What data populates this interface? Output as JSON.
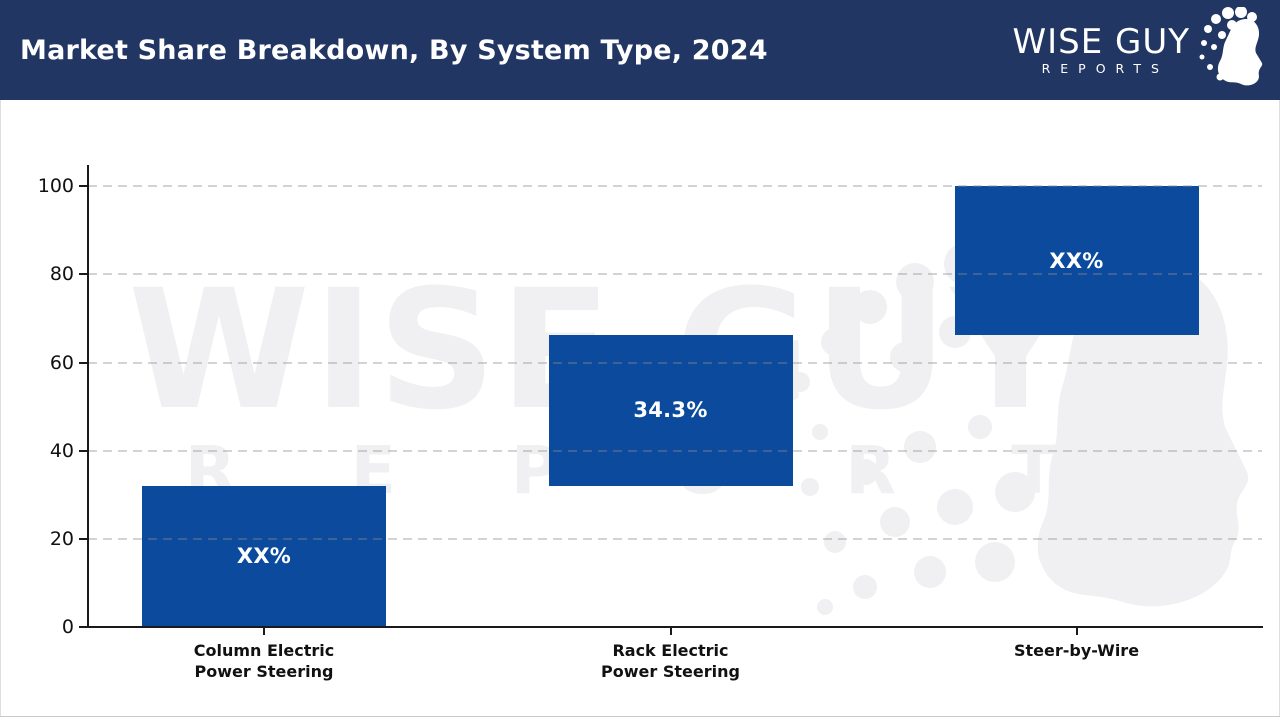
{
  "header": {
    "title": "Market Share Breakdown, By System Type, 2024",
    "logo": {
      "brand": "WISE GUY",
      "sub": "REPORTS"
    }
  },
  "watermark": {
    "brand": "WISE GUY",
    "sub": "R E P O R T S"
  },
  "chart_data": {
    "type": "bar",
    "subtype": "floating-segment-waterfall",
    "title": "Market Share Breakdown, By System Type, 2024",
    "categories": [
      "Column Electric Power Steering",
      "Rack Electric Power Steering",
      "Steer-by-Wire"
    ],
    "category_label_lines": [
      [
        "Column Electric",
        "Power Steering"
      ],
      [
        "Rack Electric",
        "Power Steering"
      ],
      [
        "Steer-by-Wire"
      ]
    ],
    "bars": [
      {
        "category": "Column Electric Power Steering",
        "start": 0,
        "end": 32,
        "label": "XX%"
      },
      {
        "category": "Rack Electric Power Steering",
        "start": 32,
        "end": 66.3,
        "label": "34.3%"
      },
      {
        "category": "Steer-by-Wire",
        "start": 66.3,
        "end": 100,
        "label": "XX%"
      }
    ],
    "xlabel": "",
    "ylabel": "",
    "yticks": [
      0,
      20,
      40,
      60,
      80,
      100
    ],
    "ylim": [
      0,
      105
    ],
    "grid": "horizontal-dashed",
    "legend": null,
    "bar_color": "#0c4a9e",
    "bar_label_color": "#ffffff",
    "header_color": "#213663"
  }
}
